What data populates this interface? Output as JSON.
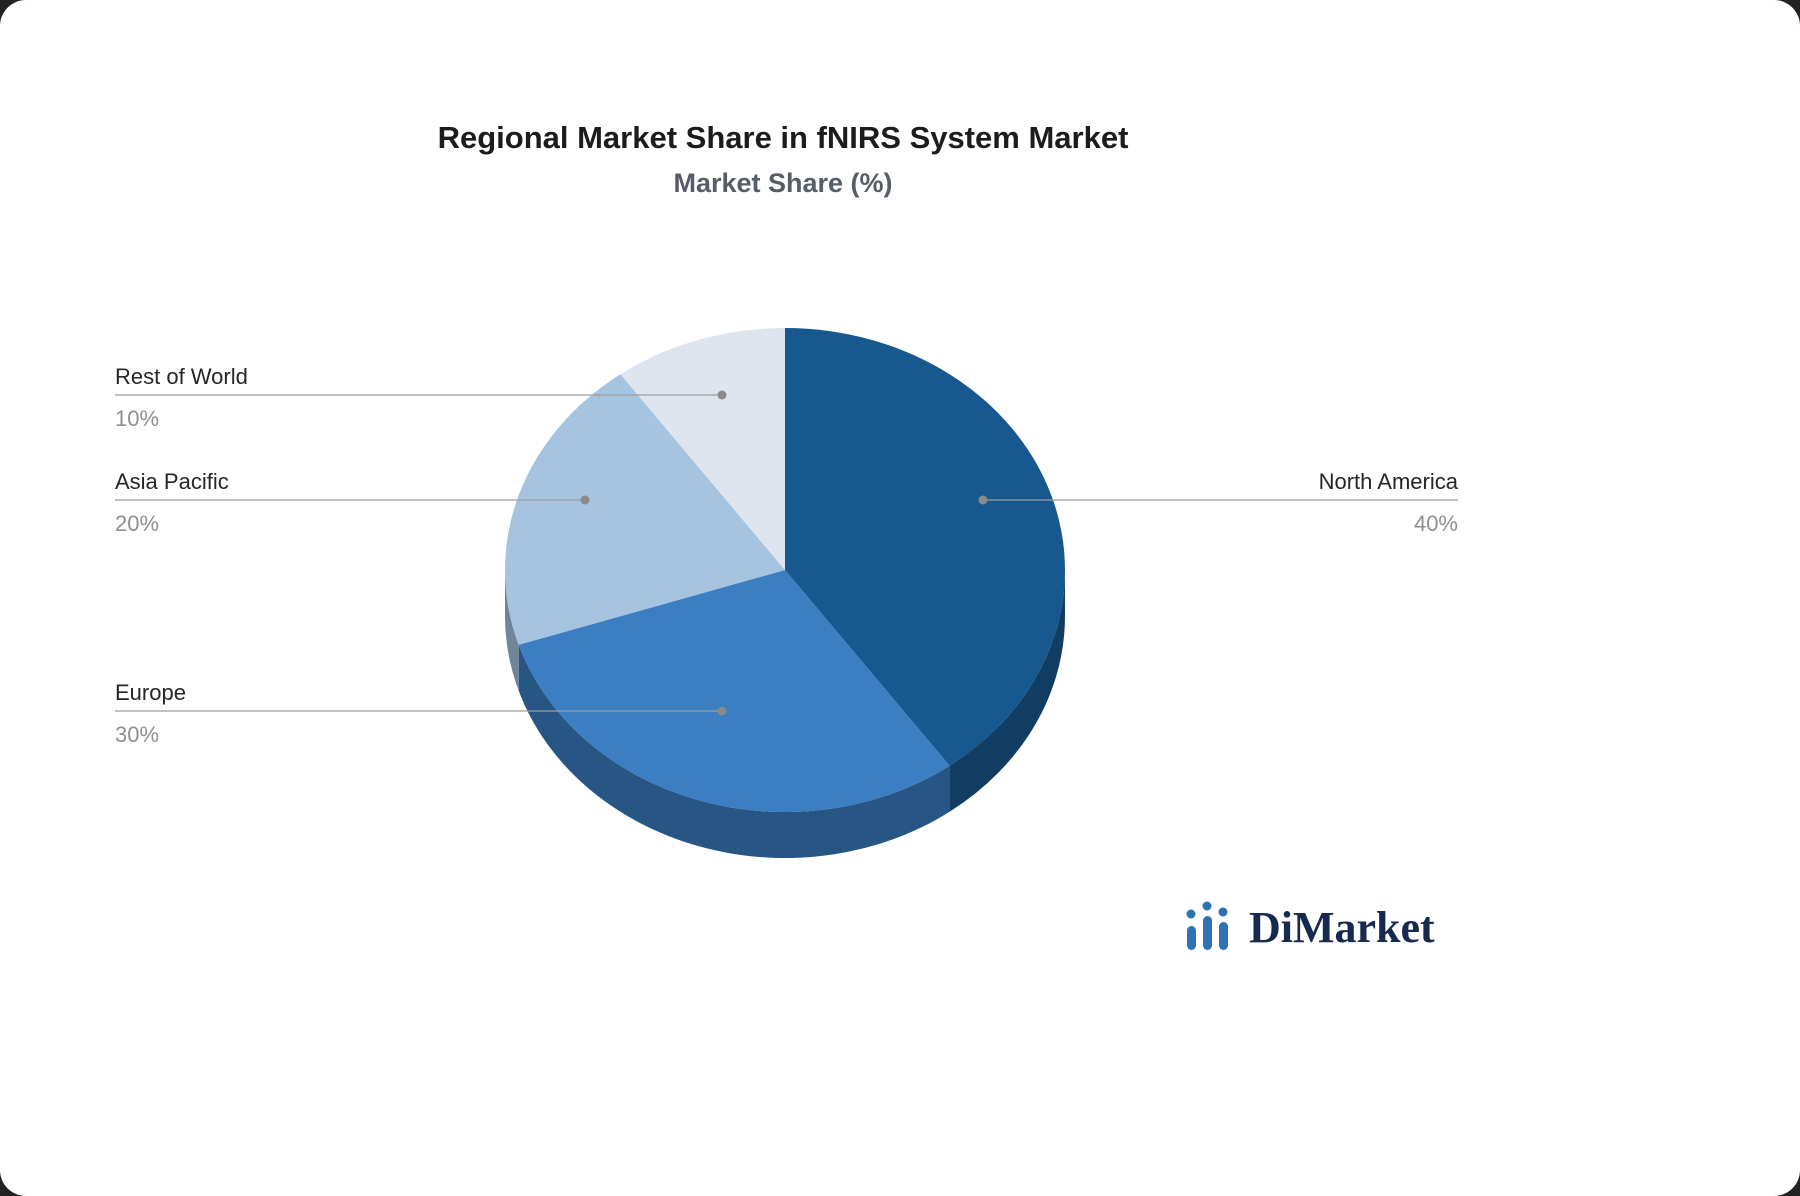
{
  "header": {
    "title": "Regional Market Share in fNIRS System Market",
    "subtitle": "Market Share (%)"
  },
  "chart_data": {
    "type": "pie",
    "style": "3d",
    "title": "Regional Market Share in fNIRS System Market",
    "subtitle": "Market Share (%)",
    "unit": "%",
    "categories": [
      "North America",
      "Europe",
      "Asia Pacific",
      "Rest of World"
    ],
    "values": [
      40,
      30,
      20,
      10
    ],
    "percent_labels": [
      "40%",
      "30%",
      "20%",
      "10%"
    ],
    "colors": [
      "#17598f",
      "#3b7ec2",
      "#a6c3e0",
      "#dfe5ef"
    ],
    "start_angle_deg": 0,
    "direction": "clockwise",
    "legend_position": "none",
    "labels_layout": "leader-lines"
  },
  "logo": {
    "text": "DiMarket",
    "icon": "bar-chart-icon",
    "text_color": "#152a4e",
    "icon_color": "#2e71b5"
  }
}
